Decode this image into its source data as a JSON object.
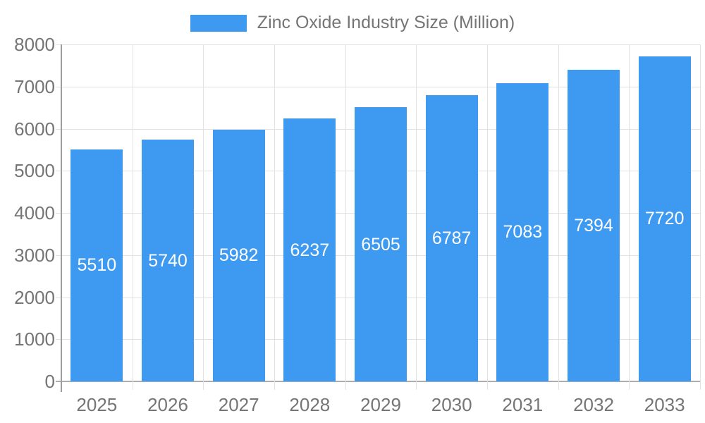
{
  "chart_data": {
    "type": "bar",
    "title": "Zinc Oxide Industry Size (Million)",
    "legend_entries": [
      "Zinc Oxide Industry Size (Million)"
    ],
    "legend_position": "top",
    "categories": [
      "2025",
      "2026",
      "2027",
      "2028",
      "2029",
      "2030",
      "2031",
      "2032",
      "2033"
    ],
    "series": [
      {
        "name": "Zinc Oxide Industry Size (Million)",
        "values": [
          5510,
          5740,
          5982,
          6237,
          6505,
          6787,
          7083,
          7394,
          7720
        ]
      }
    ],
    "xlabel": "",
    "ylabel": "",
    "ylim": [
      0,
      8000
    ],
    "ytick_step": 1000,
    "grid": true,
    "colors": {
      "bar": "#3D9AF0",
      "bar_value_text": "#FFFFFF",
      "axis_text": "#757575",
      "gridline": "#E2E2E2",
      "axis_line": "#9E9E9E",
      "baseline": "#ADADAD",
      "background": "#FFFFFF"
    }
  }
}
